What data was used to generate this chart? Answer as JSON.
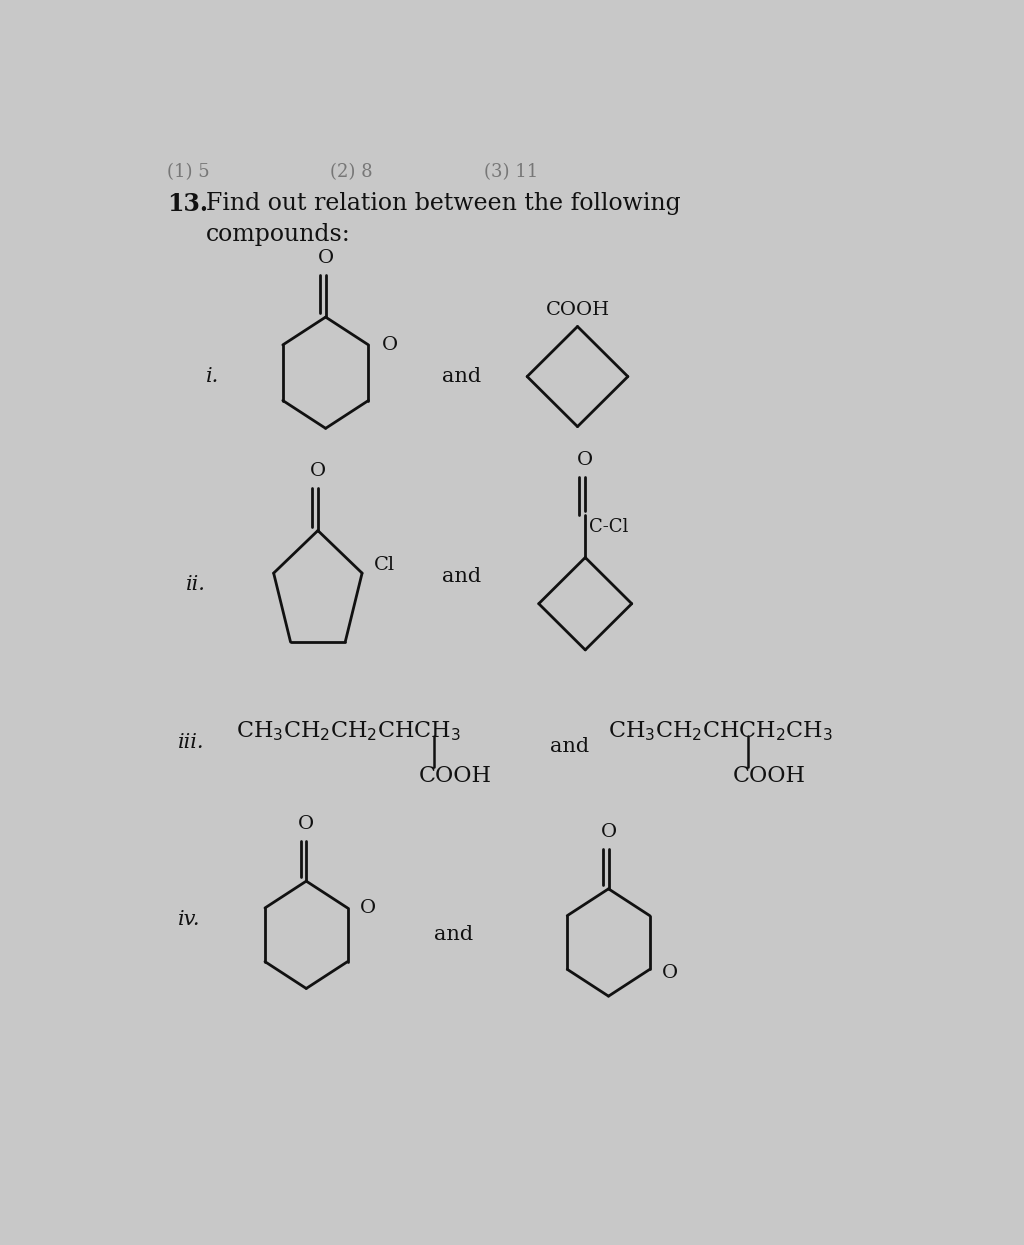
{
  "background_color": "#c8c8c8",
  "text_color": "#111111",
  "title_bold": "13.",
  "title_rest": "  Find out relation between the following",
  "title_line2": "      compounds:",
  "font_size_title": 17,
  "font_size_label": 15,
  "font_size_chem": 13,
  "font_size_subscript": 13
}
